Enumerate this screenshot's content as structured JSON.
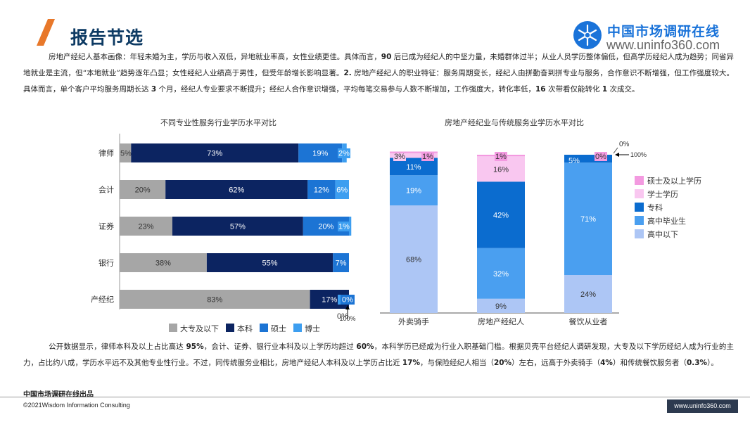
{
  "header": {
    "title": "报告节选",
    "logo_name": "中国市场调研在线",
    "logo_url": "www.uninfo360.com"
  },
  "intro": {
    "segments": [
      {
        "t": "房地产经纪人基本画像：年轻未婚为主，学历与收入双低，异地就业率高，女性业绩更佳。具体而言，"
      },
      {
        "t": "90",
        "b": true
      },
      {
        "t": " 后已成为经纪人的中坚力量，未婚群体过半；从业人员学历整体偏低，但高学历经纪人成为趋势；同省异地就业是主流，但“本地就业”趋势逐年凸显；女性经纪人业绩高于男性，但受年龄增长影响显著。"
      },
      {
        "t": "2.",
        "b": true
      },
      {
        "t": " 房地产经纪人的职业特征：服务周期变长，经纪人由拼勤奋到拼专业与服务，合作意识不断增强，但工作强度较大。具体而言，单个客户平均服务周期长达 "
      },
      {
        "t": "3",
        "b": true
      },
      {
        "t": " 个月，经纪人专业要求不断提升；经纪人合作意识增强，平均每笔交易参与人数不断增加，工作强度大，转化率低，"
      },
      {
        "t": "16",
        "b": true
      },
      {
        "t": " 次带看仅能转化 "
      },
      {
        "t": "1",
        "b": true
      },
      {
        "t": " 次成交。"
      }
    ]
  },
  "conclusion": {
    "segments": [
      {
        "t": "公开数据显示，律师本科及以上占比高达 "
      },
      {
        "t": "95%",
        "b": true
      },
      {
        "t": "，会计、证券、银行业本科及以上学历均超过 "
      },
      {
        "t": "60%",
        "b": true
      },
      {
        "t": "，本科学历已经成为行业入职基础门槛。根据贝壳平台经纪人调研发现，大专及以下学历经纪人成为行业的主力，占比约八成，学历水平远不及其他专业性行业。不过，同传统服务业相比，房地产经纪人本科及以上学历占比近 "
      },
      {
        "t": "17%",
        "b": true
      },
      {
        "t": "，与保险经纪人相当（"
      },
      {
        "t": "20%",
        "b": true
      },
      {
        "t": "）左右，远高于外卖骑手（"
      },
      {
        "t": "4%",
        "b": true
      },
      {
        "t": "）和传统餐饮服务者（"
      },
      {
        "t": "0.3%",
        "b": true
      },
      {
        "t": "）。"
      }
    ]
  },
  "footer": {
    "brand": "中国市场调研在线出品",
    "copyright": "©2021Wisdom Information Consulting",
    "url": "www.uninfo360.com"
  },
  "colors": {
    "accent_orange": "#e8782a",
    "title_navy": "#0d3a63",
    "logo_blue": "#1a73d9"
  },
  "chart_data": [
    {
      "type": "bar",
      "orientation": "horizontal",
      "stacked": true,
      "title": "不同专业性服务行业学历水平对比",
      "categories": [
        "律师",
        "会计",
        "证券",
        "银行",
        "房产经纪"
      ],
      "series": [
        {
          "name": "大专及以下",
          "color": "#a6a6a6",
          "values": [
            5,
            20,
            23,
            38,
            83
          ],
          "labels": [
            "5%",
            "20%",
            "23%",
            "38%",
            "83%"
          ]
        },
        {
          "name": "本科",
          "color": "#0c2461",
          "values": [
            73,
            62,
            57,
            55,
            17
          ],
          "labels": [
            "73%",
            "62%",
            "57%",
            "55%",
            "17%"
          ]
        },
        {
          "name": "硕士",
          "color": "#1c74d4",
          "values": [
            19,
            12,
            20,
            7,
            0
          ],
          "labels": [
            "19%",
            "12%",
            "20%",
            "7%",
            "0%"
          ]
        },
        {
          "name": "博士",
          "color": "#3d9ef0",
          "values": [
            2,
            6,
            1,
            0,
            0
          ],
          "labels": [
            "2%",
            "6%",
            "1%",
            "0%",
            "0%"
          ]
        }
      ],
      "annotations": [
        "0%",
        "0%",
        "100%"
      ],
      "xlim": [
        0,
        100
      ],
      "legend": "bottom"
    },
    {
      "type": "bar",
      "orientation": "vertical",
      "stacked": true,
      "title": "房地产经纪业与传统服务业学历水平对比",
      "categories": [
        "外卖骑手",
        "房地产经纪人",
        "餐饮从业者"
      ],
      "series": [
        {
          "name": "高中以下",
          "color": "#adc6f5",
          "values": [
            68,
            9,
            24
          ],
          "labels": [
            "68%",
            "9%",
            "24%"
          ]
        },
        {
          "name": "高中毕业生",
          "color": "#4a9ff0",
          "values": [
            19,
            32,
            71
          ],
          "labels": [
            "19%",
            "32%",
            "71%"
          ]
        },
        {
          "name": "专科",
          "color": "#0b6ccf",
          "values": [
            11,
            42,
            5
          ],
          "labels": [
            "11%",
            "42%",
            "5%"
          ]
        },
        {
          "name": "学士学历",
          "color": "#f9c7f0",
          "values": [
            3,
            16,
            0
          ],
          "labels": [
            "3%",
            "16%",
            "0%"
          ]
        },
        {
          "name": "硕士及以上学历",
          "color": "#f39ae0",
          "values": [
            1,
            1,
            0
          ],
          "labels": [
            "1%",
            "1%",
            "0%"
          ]
        }
      ],
      "annotations": [
        "0%",
        "100%"
      ],
      "ylim": [
        0,
        100
      ],
      "legend": "right"
    }
  ]
}
